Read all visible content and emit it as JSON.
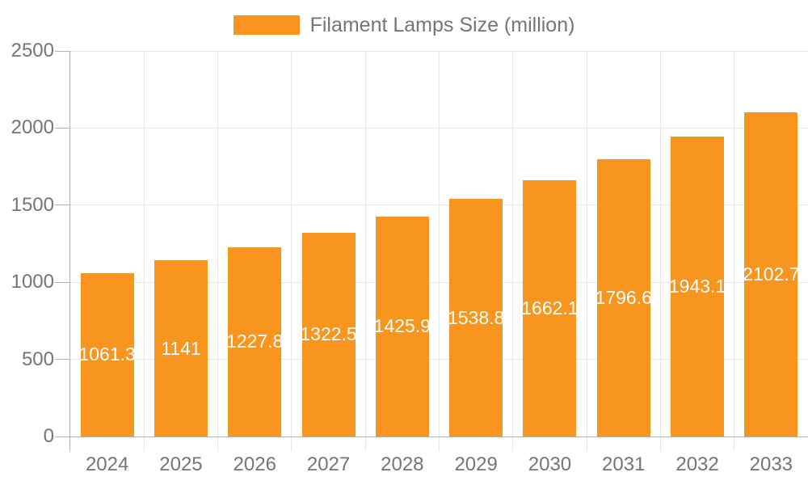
{
  "chart_data": {
    "type": "bar",
    "title": "Filament Lamps Size (million)",
    "legend": [
      "Filament Lamps Size (million)"
    ],
    "legend_position": "top-center",
    "categories": [
      "2024",
      "2025",
      "2026",
      "2027",
      "2028",
      "2029",
      "2030",
      "2031",
      "2032",
      "2033"
    ],
    "series": [
      {
        "name": "Filament Lamps Size (million)",
        "values": [
          1061.3,
          1141,
          1227.8,
          1322.5,
          1425.9,
          1538.8,
          1662.1,
          1796.6,
          1943.1,
          2102.7
        ]
      }
    ],
    "value_labels": [
      "1061.3",
      "1141",
      "1227.8",
      "1322.5",
      "1425.9",
      "1538.8",
      "1662.1",
      "1796.6",
      "1943.1",
      "2102.7"
    ],
    "xlabel": "",
    "ylabel": "",
    "ylim": [
      0,
      2500
    ],
    "y_ticks": [
      0,
      500,
      1000,
      1500,
      2000,
      2500
    ],
    "grid": true
  },
  "colors": {
    "bar": "#f8951e",
    "gridline": "#e6e6e6",
    "axis": "#b3b3b3",
    "text": "#757575",
    "bar_label": "#ffffff"
  }
}
